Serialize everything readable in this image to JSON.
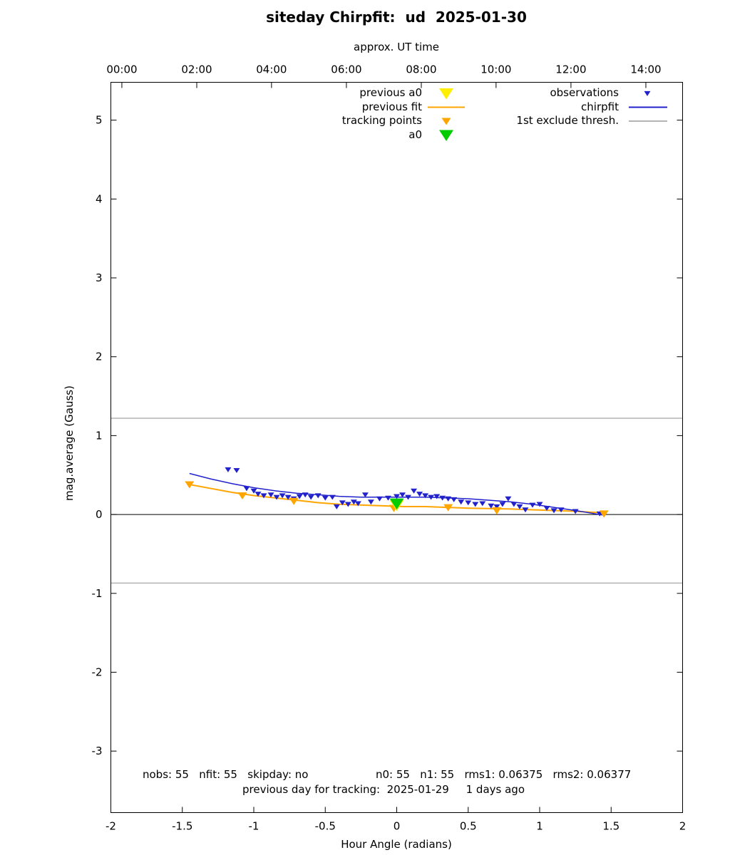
{
  "title": "siteday Chirpfit:  ud  2025-01-30",
  "axes": {
    "top_label": "approx. UT time",
    "y_label": "mag.average (Gauss)",
    "x_label": "Hour Angle (radians)"
  },
  "legend": {
    "left": [
      {
        "label": "previous a0",
        "marker": "triangle-large",
        "color": "#ffee00"
      },
      {
        "label": "previous fit",
        "marker": "line",
        "color": "#ffa500"
      },
      {
        "label": "tracking points",
        "marker": "triangle-medium",
        "color": "#ffa500"
      },
      {
        "label": "a0",
        "marker": "triangle-large",
        "color": "#00cc00"
      }
    ],
    "right": [
      {
        "label": "observations",
        "marker": "triangle-small",
        "color": "#2222cc"
      },
      {
        "label": "chirpfit",
        "marker": "line",
        "color": "#2222cc"
      },
      {
        "label": "1st exclude thresh.",
        "marker": "line",
        "color": "#b3b3b3"
      }
    ]
  },
  "stats": {
    "line1_left": "nobs: 55   nfit: 55   skipday: no",
    "line1_right": "n0: 55   n1: 55   rms1: 0.06375   rms2: 0.06377",
    "line2": "previous day for tracking:  2025-01-29     1 days ago"
  },
  "chart_data": {
    "type": "scatter",
    "title": "siteday Chirpfit:  ud  2025-01-30",
    "xlabel": "Hour Angle (radians)",
    "ylabel": "mag.average (Gauss)",
    "x2label": "approx. UT time",
    "xlim": [
      -2,
      2
    ],
    "ylim": [
      -3.78,
      5.48
    ],
    "grid": false,
    "legend_position": "top-inside",
    "xticks": [
      -2,
      -1.5,
      -1,
      -0.5,
      0,
      0.5,
      1,
      1.5,
      2
    ],
    "yticks": [
      -3,
      -2,
      -1,
      0,
      1,
      2,
      3,
      4,
      5
    ],
    "ut_ticks": [
      {
        "label": "00:00",
        "ha": -1.923
      },
      {
        "label": "02:00",
        "ha": -1.399
      },
      {
        "label": "04:00",
        "ha": -0.876
      },
      {
        "label": "06:00",
        "ha": -0.352
      },
      {
        "label": "08:00",
        "ha": 0.172
      },
      {
        "label": "10:00",
        "ha": 0.695
      },
      {
        "label": "12:00",
        "ha": 1.219
      },
      {
        "label": "14:00",
        "ha": 1.743
      }
    ],
    "zero_line": 0,
    "exclude_thresholds": [
      1.22,
      -0.87
    ],
    "colors": {
      "threshold": "#b3b3b3",
      "blue": "#2222cc",
      "orange": "#ffa500",
      "yellow": "#ffee00",
      "green": "#00cc00"
    },
    "series": [
      {
        "name": "previous fit",
        "type": "line",
        "color": "#ffa500",
        "width": 2,
        "points": [
          [
            -1.45,
            0.38
          ],
          [
            -1.3,
            0.33
          ],
          [
            -1.15,
            0.28
          ],
          [
            -1.0,
            0.24
          ],
          [
            -0.85,
            0.21
          ],
          [
            -0.7,
            0.18
          ],
          [
            -0.55,
            0.15
          ],
          [
            -0.4,
            0.13
          ],
          [
            -0.25,
            0.12
          ],
          [
            -0.1,
            0.11
          ],
          [
            0.05,
            0.1
          ],
          [
            0.2,
            0.1
          ],
          [
            0.35,
            0.09
          ],
          [
            0.5,
            0.08
          ],
          [
            0.65,
            0.075
          ],
          [
            0.8,
            0.07
          ],
          [
            0.95,
            0.06
          ],
          [
            1.1,
            0.05
          ],
          [
            1.25,
            0.04
          ],
          [
            1.45,
            0.02
          ]
        ]
      },
      {
        "name": "chirpfit",
        "type": "line",
        "color": "#2222cc",
        "width": 1.5,
        "points": [
          [
            -1.45,
            0.52
          ],
          [
            -1.3,
            0.45
          ],
          [
            -1.15,
            0.39
          ],
          [
            -1.0,
            0.34
          ],
          [
            -0.85,
            0.3
          ],
          [
            -0.7,
            0.27
          ],
          [
            -0.55,
            0.25
          ],
          [
            -0.4,
            0.23
          ],
          [
            -0.25,
            0.22
          ],
          [
            -0.1,
            0.22
          ],
          [
            0.05,
            0.22
          ],
          [
            0.2,
            0.22
          ],
          [
            0.35,
            0.21
          ],
          [
            0.5,
            0.2
          ],
          [
            0.65,
            0.18
          ],
          [
            0.8,
            0.16
          ],
          [
            0.95,
            0.13
          ],
          [
            1.1,
            0.09
          ],
          [
            1.25,
            0.05
          ],
          [
            1.45,
            -0.01
          ]
        ]
      },
      {
        "name": "observations",
        "type": "points",
        "marker": "triangle-down",
        "size": 4.5,
        "color": "#2222cc",
        "points": [
          [
            -1.18,
            0.57
          ],
          [
            -1.12,
            0.56
          ],
          [
            -1.05,
            0.33
          ],
          [
            -1.0,
            0.3
          ],
          [
            -0.97,
            0.26
          ],
          [
            -0.93,
            0.24
          ],
          [
            -0.88,
            0.25
          ],
          [
            -0.84,
            0.22
          ],
          [
            -0.8,
            0.24
          ],
          [
            -0.76,
            0.22
          ],
          [
            -0.72,
            0.2
          ],
          [
            -0.68,
            0.23
          ],
          [
            -0.64,
            0.25
          ],
          [
            -0.6,
            0.22
          ],
          [
            -0.55,
            0.24
          ],
          [
            -0.5,
            0.21
          ],
          [
            -0.45,
            0.22
          ],
          [
            -0.42,
            0.1
          ],
          [
            -0.38,
            0.15
          ],
          [
            -0.34,
            0.13
          ],
          [
            -0.3,
            0.16
          ],
          [
            -0.27,
            0.14
          ],
          [
            -0.22,
            0.25
          ],
          [
            -0.18,
            0.16
          ],
          [
            -0.12,
            0.2
          ],
          [
            -0.06,
            0.21
          ],
          [
            0.0,
            0.23
          ],
          [
            0.04,
            0.25
          ],
          [
            0.08,
            0.22
          ],
          [
            0.12,
            0.3
          ],
          [
            0.16,
            0.26
          ],
          [
            0.2,
            0.24
          ],
          [
            0.24,
            0.22
          ],
          [
            0.28,
            0.23
          ],
          [
            0.32,
            0.21
          ],
          [
            0.36,
            0.2
          ],
          [
            0.4,
            0.19
          ],
          [
            0.45,
            0.16
          ],
          [
            0.5,
            0.15
          ],
          [
            0.55,
            0.13
          ],
          [
            0.6,
            0.14
          ],
          [
            0.66,
            0.11
          ],
          [
            0.7,
            0.1
          ],
          [
            0.74,
            0.13
          ],
          [
            0.78,
            0.2
          ],
          [
            0.82,
            0.13
          ],
          [
            0.86,
            0.1
          ],
          [
            0.9,
            0.06
          ],
          [
            0.95,
            0.12
          ],
          [
            1.0,
            0.13
          ],
          [
            1.05,
            0.08
          ],
          [
            1.1,
            0.05
          ],
          [
            1.15,
            0.06
          ],
          [
            1.25,
            0.04
          ],
          [
            1.42,
            0.01
          ]
        ]
      },
      {
        "name": "tracking points",
        "type": "points",
        "marker": "triangle-down",
        "size": 6.5,
        "color": "#ffa500",
        "points": [
          [
            -1.45,
            0.38
          ],
          [
            -1.08,
            0.24
          ],
          [
            -0.72,
            0.17
          ],
          [
            -0.02,
            0.08
          ],
          [
            0.36,
            0.09
          ],
          [
            0.7,
            0.05
          ],
          [
            1.45,
            0.01
          ]
        ]
      },
      {
        "name": "previous a0",
        "type": "points",
        "marker": "triangle-down",
        "size": 10,
        "color": "#ffee00",
        "points": [
          [
            0.0,
            0.12
          ]
        ]
      },
      {
        "name": "a0",
        "type": "points",
        "marker": "triangle-down",
        "size": 10,
        "color": "#00cc00",
        "points": [
          [
            0.0,
            0.14
          ]
        ]
      }
    ]
  }
}
